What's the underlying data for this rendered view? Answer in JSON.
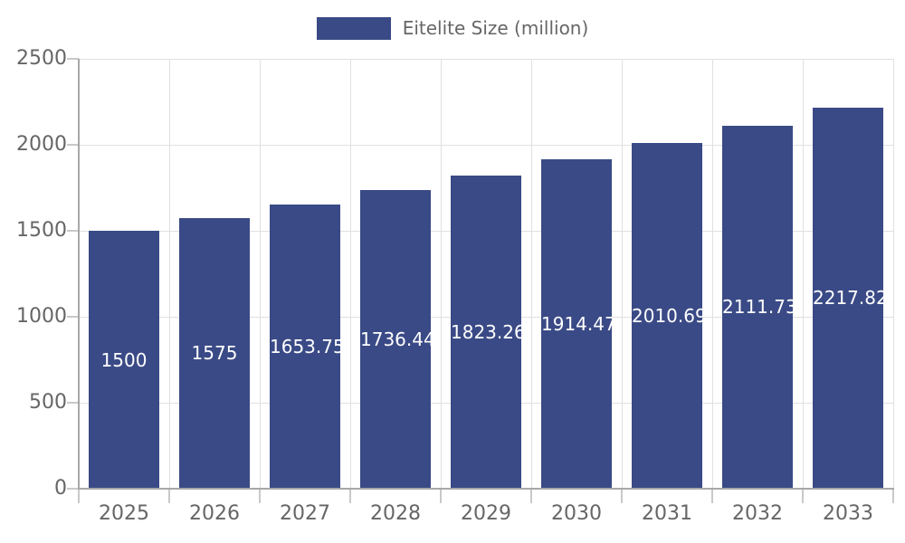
{
  "legend": {
    "label": "Eitelite Size (million)"
  },
  "chart_data": {
    "type": "bar",
    "title": "",
    "categories": [
      "2025",
      "2026",
      "2027",
      "2028",
      "2029",
      "2030",
      "2031",
      "2032",
      "2033"
    ],
    "series": [
      {
        "name": "Eitelite Size (million)",
        "values": [
          1500,
          1575,
          1653.75,
          1736.44,
          1823.26,
          1914.47,
          2010.69,
          2111.73,
          2217.82
        ],
        "value_labels": [
          "1500",
          "1575",
          "1653.75",
          "1736.44",
          "1823.26",
          "1914.47",
          "2010.69",
          "2111.73",
          "2217.82"
        ]
      }
    ],
    "xlabel": "",
    "ylabel": "",
    "ylim": [
      0,
      2500
    ],
    "yticks": [
      0,
      500,
      1000,
      1500,
      2000,
      2500
    ],
    "grid": true,
    "legend_position": "top-center"
  },
  "style": {
    "bar_color": "#3A4A86",
    "value_label_color": "#FFFFFF",
    "tick_label_color": "#666666",
    "legend_text_color": "#666666",
    "gridline_color": "#E0E0E0",
    "axis_color": "#A8A8A8",
    "tick_mark_color": "#C9C9C9",
    "background_color": "#FFFFFF"
  }
}
